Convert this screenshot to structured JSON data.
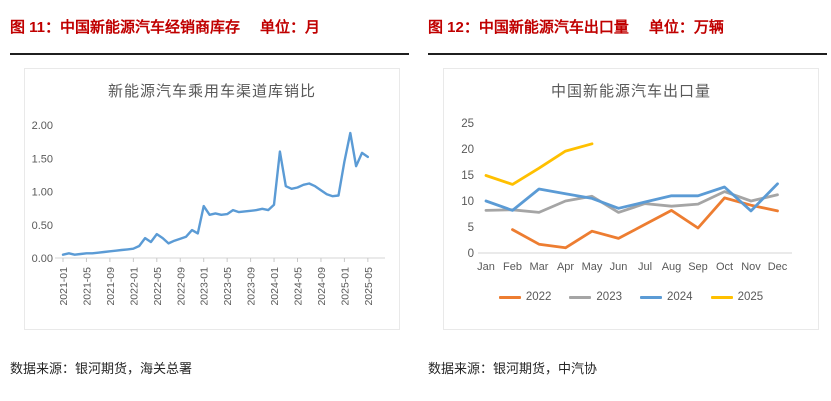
{
  "header": {
    "fig11": {
      "label": "图 11：中国新能源汽车经销商库存",
      "unit": "单位：月"
    },
    "fig12": {
      "label": "图 12：中国新能源汽车出口量",
      "unit": "单位：万辆"
    }
  },
  "sources": {
    "left": "数据来源：银河期货，海关总署",
    "right": "数据来源：银河期货，中汽协"
  },
  "colors": {
    "header_red": "#c00000",
    "axis_text": "#595959",
    "axis_line": "#d6d6d6"
  },
  "chart_data": [
    {
      "type": "line",
      "title": "新能源汽车乘用车渠道库销比",
      "x_frequency": "monthly",
      "x_tick_labels": [
        "2021-01",
        "2021-05",
        "2021-09",
        "2022-01",
        "2022-05",
        "2022-09",
        "2023-01",
        "2023-05",
        "2023-09",
        "2024-01",
        "2024-05",
        "2024-09",
        "2025-01",
        "2025-05"
      ],
      "tick_every": 4,
      "ylim": [
        0,
        2
      ],
      "y_ticks": [
        "2.00",
        "1.50",
        "1.00",
        "0.50",
        "0.00"
      ],
      "grid": false,
      "legend": false,
      "series": [
        {
          "color": "#5B9BD5",
          "values": [
            0.05,
            0.07,
            0.05,
            0.06,
            0.07,
            0.07,
            0.08,
            0.09,
            0.1,
            0.11,
            0.12,
            0.13,
            0.14,
            0.18,
            0.3,
            0.24,
            0.36,
            0.3,
            0.22,
            0.26,
            0.29,
            0.32,
            0.42,
            0.37,
            0.78,
            0.65,
            0.67,
            0.65,
            0.66,
            0.72,
            0.69,
            0.7,
            0.71,
            0.72,
            0.74,
            0.72,
            0.8,
            1.6,
            1.08,
            1.04,
            1.06,
            1.1,
            1.12,
            1.08,
            1.02,
            0.96,
            0.93,
            0.94,
            1.45,
            1.88,
            1.38,
            1.58,
            1.52
          ]
        }
      ]
    },
    {
      "type": "line",
      "title": "中国新能源汽车出口量",
      "categories": [
        "Jan",
        "Feb",
        "Mar",
        "Apr",
        "May",
        "Jun",
        "Jul",
        "Aug",
        "Sep",
        "Oct",
        "Nov",
        "Dec"
      ],
      "ylim": [
        0,
        25
      ],
      "y_ticks": [
        "25",
        "20",
        "15",
        "10",
        "5",
        "0"
      ],
      "grid": false,
      "legend": true,
      "legend_position": "bottom",
      "series": [
        {
          "name": "2022",
          "color": "#ED7D31",
          "values": [
            null,
            4.5,
            1.7,
            1.0,
            4.2,
            2.8,
            5.5,
            8.2,
            4.8,
            10.6,
            9.2,
            8.1
          ]
        },
        {
          "name": "2023",
          "color": "#A5A5A5",
          "values": [
            8.2,
            8.3,
            7.8,
            10.0,
            10.9,
            7.8,
            9.5,
            9.0,
            9.4,
            11.8,
            10.0,
            11.2
          ]
        },
        {
          "name": "2024",
          "color": "#5B9BD5",
          "values": [
            10.0,
            8.2,
            12.3,
            11.4,
            10.5,
            8.6,
            9.8,
            11.0,
            11.0,
            12.7,
            8.1,
            13.3
          ]
        },
        {
          "name": "2025",
          "color": "#FFC000",
          "values": [
            14.9,
            13.2,
            16.3,
            19.6,
            21.0,
            null,
            null,
            null,
            null,
            null,
            null,
            null
          ]
        }
      ]
    }
  ]
}
